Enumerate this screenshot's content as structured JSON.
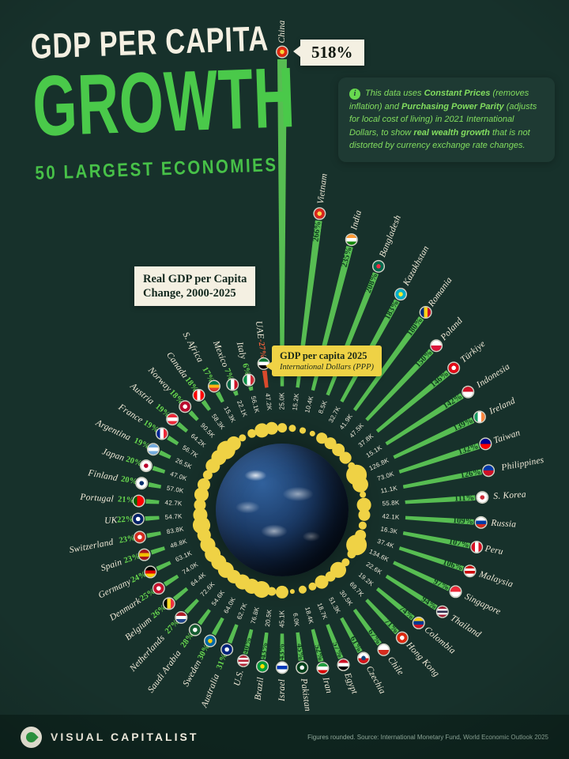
{
  "page": {
    "colors": {
      "bg": "#17312b",
      "panel": "#1e3a33",
      "accent": "#4ac94a",
      "bar_green": "#57bd52",
      "label_green": "#68d94f",
      "yellow": "#efd245",
      "red": "#d94a2c",
      "red_text": "#f0603c",
      "cream": "#f4f0e2",
      "dark_text": "#12281e",
      "footer_bg": "#0e241e"
    }
  },
  "header": {
    "title_line1": "GDP PER CAPITA",
    "title_line2": "GROWTH",
    "subtitle": "50 LARGEST ECONOMIES"
  },
  "info_box": {
    "icon": "info-icon",
    "segments": [
      {
        "t": "This data uses ",
        "b": false
      },
      {
        "t": "Constant Prices",
        "b": true
      },
      {
        "t": " (removes inflation) and ",
        "b": false
      },
      {
        "t": "Purchasing Power Parity",
        "b": true
      },
      {
        "t": " (adjusts for local cost of living) in 2021 International Dollars, to show ",
        "b": false
      },
      {
        "t": "real wealth growth",
        "b": true
      },
      {
        "t": " that is not distorted by currency exchange rate changes.",
        "b": false
      }
    ]
  },
  "labels": {
    "change_box_line1": "Real GDP per Capita",
    "change_box_line2": "Change, 2000-2025",
    "gdp_box_line1": "GDP per capita 2025",
    "gdp_box_line2": "International Dollars (PPP)",
    "china_callout": "518%"
  },
  "footer": {
    "brand": "VISUAL CAPITALIST",
    "source": "Figures rounded. Source: International Monetary Fund, World Economic Outlook 2025"
  },
  "chart_data": {
    "type": "radial-bar",
    "title": "Real GDP per Capita Change, 2000-2025",
    "subtitle": "50 Largest Economies",
    "value_label": "GDP per capita 2025, International Dollars (PPP)",
    "unit": "%",
    "layout": {
      "start": "top",
      "direction": "clockwise",
      "sorted": "descending",
      "center_image": "earth",
      "bubble_ring": "gdp-per-capita-size"
    },
    "countries": [
      {
        "name": "China",
        "growth": 518,
        "gdp": "25.0K",
        "flag": {
          "dir": "h",
          "colors": [
            "#de2910"
          ],
          "dot": "#f8d335"
        }
      },
      {
        "name": "Vietnam",
        "growth": 266,
        "gdp": "15.2K",
        "flag": {
          "dir": "h",
          "colors": [
            "#da251d"
          ],
          "dot": "#ffd54a"
        }
      },
      {
        "name": "India",
        "growth": 235,
        "gdp": "10.4K",
        "flag": {
          "dir": "h",
          "colors": [
            "#ff9933",
            "#ffffff",
            "#138808"
          ]
        }
      },
      {
        "name": "Bangladesh",
        "growth": 208,
        "gdp": "8.5K",
        "flag": {
          "dir": "h",
          "colors": [
            "#006a4e"
          ],
          "dot": "#f42a41"
        }
      },
      {
        "name": "Kazakhstan",
        "growth": 183,
        "gdp": "32.7K",
        "flag": {
          "dir": "h",
          "colors": [
            "#00afca"
          ],
          "dot": "#ffec2d"
        }
      },
      {
        "name": "Romania",
        "growth": 180,
        "gdp": "41.9K",
        "flag": {
          "dir": "v",
          "colors": [
            "#002b7f",
            "#fcd116",
            "#ce1126"
          ]
        }
      },
      {
        "name": "Poland",
        "growth": 150,
        "gdp": "47.5K",
        "flag": {
          "dir": "h",
          "colors": [
            "#ffffff",
            "#dc143c"
          ]
        }
      },
      {
        "name": "Türkiye",
        "growth": 146,
        "gdp": "37.8K",
        "flag": {
          "dir": "h",
          "colors": [
            "#e30a17"
          ],
          "dot": "#ffffff"
        }
      },
      {
        "name": "Indonesia",
        "growth": 142,
        "gdp": "15.1K",
        "flag": {
          "dir": "h",
          "colors": [
            "#ce1126",
            "#ffffff"
          ]
        }
      },
      {
        "name": "Ireland",
        "growth": 139,
        "gdp": "126.8K",
        "flag": {
          "dir": "v",
          "colors": [
            "#169b62",
            "#ffffff",
            "#ff883e"
          ]
        }
      },
      {
        "name": "Taiwan",
        "growth": 132,
        "gdp": "73.0K",
        "flag": {
          "dir": "h",
          "colors": [
            "#000095",
            "#fe0000"
          ]
        }
      },
      {
        "name": "Philippines",
        "growth": 126,
        "gdp": "11.1K",
        "flag": {
          "dir": "h",
          "colors": [
            "#0038a8",
            "#ce1126"
          ]
        }
      },
      {
        "name": "S. Korea",
        "growth": 111,
        "gdp": "55.8K",
        "flag": {
          "dir": "h",
          "colors": [
            "#ffffff"
          ],
          "dot": "#cd2e3a"
        }
      },
      {
        "name": "Russia",
        "growth": 109,
        "gdp": "42.1K",
        "flag": {
          "dir": "h",
          "colors": [
            "#ffffff",
            "#0039a6",
            "#d52b1e"
          ]
        }
      },
      {
        "name": "Peru",
        "growth": 107,
        "gdp": "16.3K",
        "flag": {
          "dir": "v",
          "colors": [
            "#d91023",
            "#ffffff",
            "#d91023"
          ]
        }
      },
      {
        "name": "Malaysia",
        "growth": 106,
        "gdp": "37.4K",
        "flag": {
          "dir": "h",
          "colors": [
            "#cc0001",
            "#ffffff",
            "#cc0001",
            "#ffffff"
          ]
        }
      },
      {
        "name": "Singapore",
        "growth": 97,
        "gdp": "134.6K",
        "flag": {
          "dir": "h",
          "colors": [
            "#ed2939",
            "#ffffff"
          ]
        }
      },
      {
        "name": "Thailand",
        "growth": 94,
        "gdp": "22.6K",
        "flag": {
          "dir": "h",
          "colors": [
            "#a51931",
            "#f4f5f8",
            "#2d2a4a",
            "#f4f5f8",
            "#a51931"
          ]
        }
      },
      {
        "name": "Colombia",
        "growth": 74,
        "gdp": "19.2K",
        "flag": {
          "dir": "h",
          "colors": [
            "#fcd116",
            "#003893",
            "#ce1126"
          ]
        }
      },
      {
        "name": "Hong Kong",
        "growth": 71,
        "gdp": "69.7K",
        "flag": {
          "dir": "h",
          "colors": [
            "#de2910"
          ],
          "dot": "#ffffff"
        }
      },
      {
        "name": "Chile",
        "growth": 67,
        "gdp": "30.5K",
        "flag": {
          "dir": "h",
          "colors": [
            "#ffffff",
            "#d52b1e"
          ]
        }
      },
      {
        "name": "Czechia",
        "growth": 61,
        "gdp": "51.3K",
        "flag": {
          "dir": "h",
          "colors": [
            "#ffffff",
            "#d7141a"
          ],
          "dot": "#11457e"
        }
      },
      {
        "name": "Egypt",
        "growth": 57,
        "gdp": "18.7K",
        "flag": {
          "dir": "h",
          "colors": [
            "#ce1126",
            "#ffffff",
            "#000000"
          ]
        }
      },
      {
        "name": "Iran",
        "growth": 52,
        "gdp": "18.4K",
        "flag": {
          "dir": "h",
          "colors": [
            "#239f40",
            "#ffffff",
            "#da0000"
          ]
        }
      },
      {
        "name": "Pakistan",
        "growth": 45,
        "gdp": "6.0K",
        "flag": {
          "dir": "h",
          "colors": [
            "#01411c"
          ],
          "dot": "#ffffff"
        }
      },
      {
        "name": "Israel",
        "growth": 43,
        "gdp": "45.1K",
        "flag": {
          "dir": "h",
          "colors": [
            "#ffffff",
            "#0038b8",
            "#ffffff"
          ]
        }
      },
      {
        "name": "Brazil",
        "growth": 43,
        "gdp": "20.5K",
        "flag": {
          "dir": "h",
          "colors": [
            "#009b3a"
          ],
          "dot": "#fedf00"
        }
      },
      {
        "name": "U.S.",
        "growth": 40,
        "gdp": "76.8K",
        "flag": {
          "dir": "h",
          "colors": [
            "#b22234",
            "#ffffff",
            "#b22234",
            "#ffffff",
            "#b22234"
          ]
        }
      },
      {
        "name": "Australia",
        "growth": 31,
        "gdp": "62.7K",
        "flag": {
          "dir": "h",
          "colors": [
            "#00247d"
          ],
          "dot": "#ffffff"
        }
      },
      {
        "name": "Sweden",
        "growth": 30,
        "gdp": "64.0K",
        "flag": {
          "dir": "h",
          "colors": [
            "#006aa7"
          ],
          "dot": "#fecc00"
        }
      },
      {
        "name": "Saudi Arabia",
        "growth": 28,
        "gdp": "54.6K",
        "flag": {
          "dir": "h",
          "colors": [
            "#165d31"
          ],
          "dot": "#ffffff"
        }
      },
      {
        "name": "Netherlands",
        "growth": 27,
        "gdp": "72.6K",
        "flag": {
          "dir": "h",
          "colors": [
            "#ae1c28",
            "#ffffff",
            "#21468b"
          ]
        }
      },
      {
        "name": "Belgium",
        "growth": 26,
        "gdp": "64.4K",
        "flag": {
          "dir": "v",
          "colors": [
            "#000000",
            "#fdda24",
            "#ef3340"
          ]
        }
      },
      {
        "name": "Denmark",
        "growth": 25,
        "gdp": "74.0K",
        "flag": {
          "dir": "h",
          "colors": [
            "#c8102e"
          ],
          "dot": "#ffffff"
        }
      },
      {
        "name": "Germany",
        "growth": 24,
        "gdp": "63.1K",
        "flag": {
          "dir": "h",
          "colors": [
            "#000000",
            "#dd0000",
            "#ffce00"
          ]
        }
      },
      {
        "name": "Spain",
        "growth": 23,
        "gdp": "48.8K",
        "flag": {
          "dir": "h",
          "colors": [
            "#aa151b",
            "#f1bf00",
            "#aa151b"
          ]
        }
      },
      {
        "name": "Switzerland",
        "growth": 23,
        "gdp": "83.8K",
        "flag": {
          "dir": "h",
          "colors": [
            "#d52b1e"
          ],
          "dot": "#ffffff"
        }
      },
      {
        "name": "UK",
        "growth": 22,
        "gdp": "54.7K",
        "flag": {
          "dir": "h",
          "colors": [
            "#012169"
          ],
          "dot": "#ffffff"
        }
      },
      {
        "name": "Portugal",
        "growth": 21,
        "gdp": "42.7K",
        "flag": {
          "dir": "v",
          "colors": [
            "#006600",
            "#ff0000",
            "#ff0000"
          ]
        }
      },
      {
        "name": "Finland",
        "growth": 20,
        "gdp": "57.0K",
        "flag": {
          "dir": "h",
          "colors": [
            "#ffffff"
          ],
          "dot": "#002f6c"
        }
      },
      {
        "name": "Japan",
        "growth": 20,
        "gdp": "47.0K",
        "flag": {
          "dir": "h",
          "colors": [
            "#ffffff"
          ],
          "dot": "#bc002d"
        }
      },
      {
        "name": "Argentina",
        "growth": 19,
        "gdp": "26.5K",
        "flag": {
          "dir": "h",
          "colors": [
            "#74acdf",
            "#ffffff",
            "#74acdf"
          ]
        }
      },
      {
        "name": "France",
        "growth": 19,
        "gdp": "56.7K",
        "flag": {
          "dir": "v",
          "colors": [
            "#002395",
            "#ffffff",
            "#ed2939"
          ]
        }
      },
      {
        "name": "Austria",
        "growth": 19,
        "gdp": "64.2K",
        "flag": {
          "dir": "h",
          "colors": [
            "#ed2939",
            "#ffffff",
            "#ed2939"
          ]
        }
      },
      {
        "name": "Norway",
        "growth": 18,
        "gdp": "90.5K",
        "flag": {
          "dir": "h",
          "colors": [
            "#ba0c2f"
          ],
          "dot": "#ffffff"
        }
      },
      {
        "name": "Canada",
        "growth": 18,
        "gdp": "58.3K",
        "flag": {
          "dir": "v",
          "colors": [
            "#ff0000",
            "#ffffff",
            "#ff0000"
          ]
        }
      },
      {
        "name": "S. Africa",
        "growth": 17,
        "gdp": "15.3K",
        "flag": {
          "dir": "h",
          "colors": [
            "#007a4d",
            "#ffb612",
            "#de3831"
          ]
        }
      },
      {
        "name": "Mexico",
        "growth": 7,
        "gdp": "22.1K",
        "flag": {
          "dir": "v",
          "colors": [
            "#006847",
            "#ffffff",
            "#ce1126"
          ]
        }
      },
      {
        "name": "Italy",
        "growth": 6,
        "gdp": "56.1K",
        "flag": {
          "dir": "v",
          "colors": [
            "#009246",
            "#ffffff",
            "#ce2b37"
          ]
        }
      },
      {
        "name": "UAE",
        "growth": -27,
        "gdp": "47.2K",
        "flag": {
          "dir": "h",
          "colors": [
            "#00732f",
            "#ffffff",
            "#000000"
          ]
        }
      }
    ]
  }
}
